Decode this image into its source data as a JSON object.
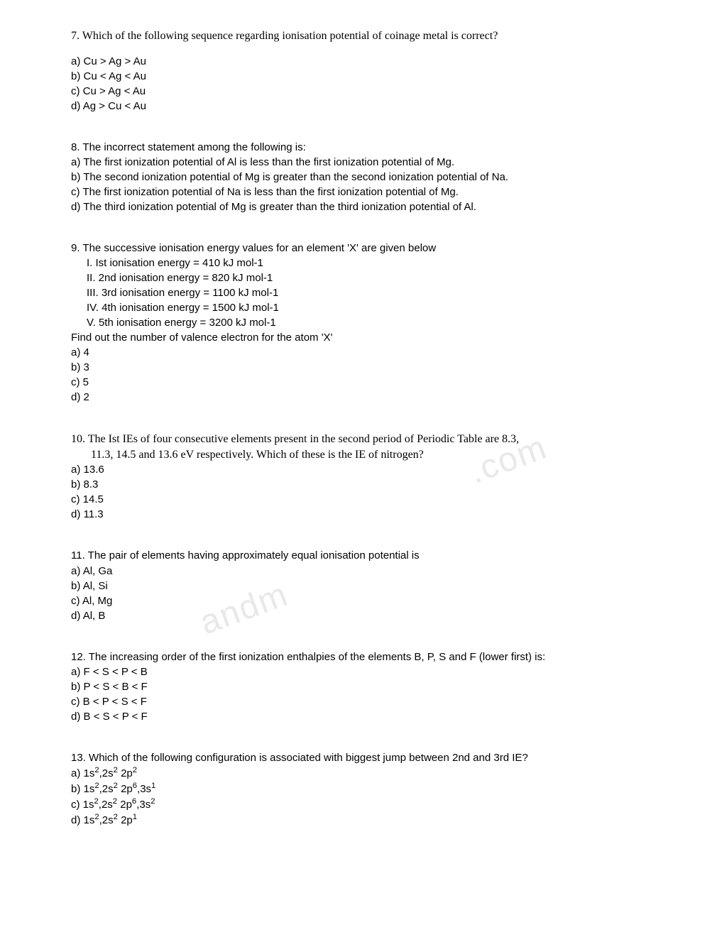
{
  "watermark": {
    "text_fragment_1": ".com",
    "text_fragment_2": "andm",
    "color": "#e8e8e8"
  },
  "questions": [
    {
      "number": "7.",
      "font": "serif",
      "text": "Which of the following sequence regarding ionisation potential of coinage metal is correct?",
      "options": [
        {
          "label": "a)",
          "text": "Cu > Ag > Au"
        },
        {
          "label": "b)",
          "text": "Cu < Ag < Au"
        },
        {
          "label": "c)",
          "text": "Cu > Ag < Au"
        },
        {
          "label": "d)",
          "text": "Ag > Cu < Au"
        }
      ]
    },
    {
      "number": "8.",
      "font": "sans",
      "text": "The incorrect statement among the following is:",
      "options": [
        {
          "label": "a)",
          "text": "The first ionization potential of Al is less than the first ionization potential of Mg."
        },
        {
          "label": "b)",
          "text": "The second ionization potential of Mg is greater than the second ionization potential of Na."
        },
        {
          "label": "c)",
          "text": "The first ionization potential of Na is less than the first ionization potential of Mg."
        },
        {
          "label": "d)",
          "text": "The third ionization potential of Mg is greater than the third ionization potential of Al."
        }
      ]
    },
    {
      "number": "9.",
      "font": "sans",
      "text": "The successive ionisation energy values for an element 'X' are given below",
      "sub_items": [
        "I. Ist ionisation energy = 410 kJ mol-1",
        "II. 2nd ionisation energy = 820 kJ mol-1",
        "III. 3rd ionisation energy = 1100 kJ mol-1",
        "IV. 4th ionisation energy = 1500 kJ mol-1",
        "V. 5th ionisation energy = 3200 kJ mol-1"
      ],
      "find_line": "Find out the number of valence electron for the atom 'X'",
      "options": [
        {
          "label": "a)",
          "text": "4"
        },
        {
          "label": "b)",
          "text": "3"
        },
        {
          "label": "c)",
          "text": "5"
        },
        {
          "label": "d)",
          "text": "2"
        }
      ]
    },
    {
      "number": "10.",
      "font": "serif",
      "text": "The Ist IEs of four consecutive elements present in the second period of Periodic Table are 8.3,",
      "text_line2": "11.3, 14.5 and 13.6 eV respectively. Which of these is the IE of nitrogen?",
      "options": [
        {
          "label": "a)",
          "text": "13.6"
        },
        {
          "label": "b)",
          "text": "8.3"
        },
        {
          "label": "c)",
          "text": "14.5"
        },
        {
          "label": "d)",
          "text": "11.3"
        }
      ]
    },
    {
      "number": "11.",
      "font": "sans",
      "text": "The pair of elements having approximately equal ionisation potential is",
      "options": [
        {
          "label": "a)",
          "text": "Al, Ga"
        },
        {
          "label": "b)",
          "text": "Al, Si"
        },
        {
          "label": "c)",
          "text": "Al, Mg"
        },
        {
          "label": "d)",
          "text": "Al, B"
        }
      ]
    },
    {
      "number": "12.",
      "font": "sans",
      "text": "The increasing order of the first ionization enthalpies of the elements B, P, S and F (lower first) is:",
      "options": [
        {
          "label": "a)",
          "text": "F < S < P < B"
        },
        {
          "label": "b)",
          "text": "P < S < B < F"
        },
        {
          "label": "c)",
          "text": "B < P < S < F"
        },
        {
          "label": "d)",
          "text": "B < S < P < F"
        }
      ]
    },
    {
      "number": "13.",
      "font": "sans",
      "text": "Which of the following configuration is associated with biggest jump between 2nd and 3rd IE?",
      "options_html": [
        {
          "label": "a)",
          "html": "1s<sup>2</sup>,2s<sup>2</sup> 2p<sup>2</sup>"
        },
        {
          "label": "b)",
          "html": "1s<sup>2</sup>,2s<sup>2</sup> 2p<sup>6</sup>,3s<sup>1</sup>"
        },
        {
          "label": "c)",
          "html": "1s<sup>2</sup>,2s<sup>2</sup> 2p<sup>6</sup>,3s<sup>2</sup>"
        },
        {
          "label": "d)",
          "html": "1s<sup>2</sup>,2s<sup>2</sup> 2p<sup>1</sup>"
        }
      ]
    }
  ]
}
